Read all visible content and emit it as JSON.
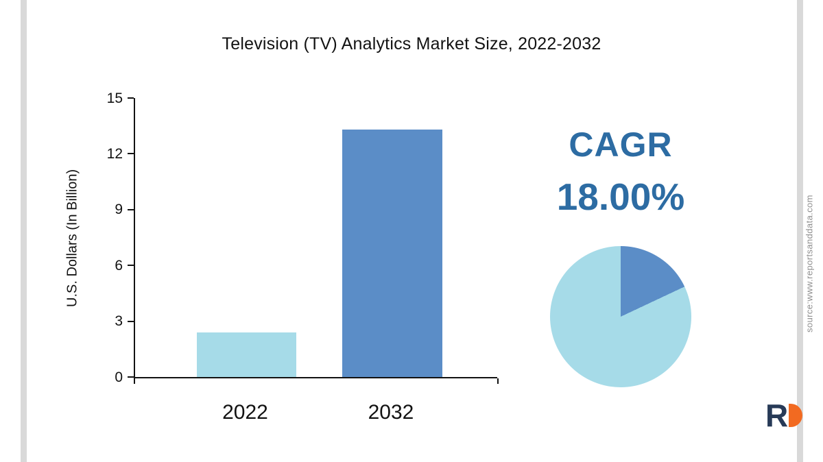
{
  "title": "Television (TV) Analytics Market Size, 2022-2032",
  "chart_data": [
    {
      "type": "bar",
      "title": "Television (TV) Analytics Market Size, 2022-2032",
      "categories": [
        "2022",
        "2032"
      ],
      "values": [
        2.4,
        13.3
      ],
      "xlabel": "",
      "ylabel": "U.S. Dollars (In Billion)",
      "ylim": [
        0,
        15
      ],
      "yticks": [
        0,
        3,
        6,
        9,
        12,
        15
      ],
      "colors": [
        "#a6dbe8",
        "#5b8dc7"
      ],
      "grid": false,
      "legend": "none"
    },
    {
      "type": "pie",
      "values": [
        18,
        82
      ],
      "colors": [
        "#5b8dc7",
        "#a6dbe8"
      ],
      "start_angle_deg": 0
    }
  ],
  "cagr": {
    "label": "CAGR",
    "value": "18.00%",
    "color": "#2d6ca3"
  },
  "source_note": "source:www.reportsanddata.com",
  "logo": {
    "text": "R",
    "text_color": "#273a57",
    "accent_color": "#f26a21"
  }
}
